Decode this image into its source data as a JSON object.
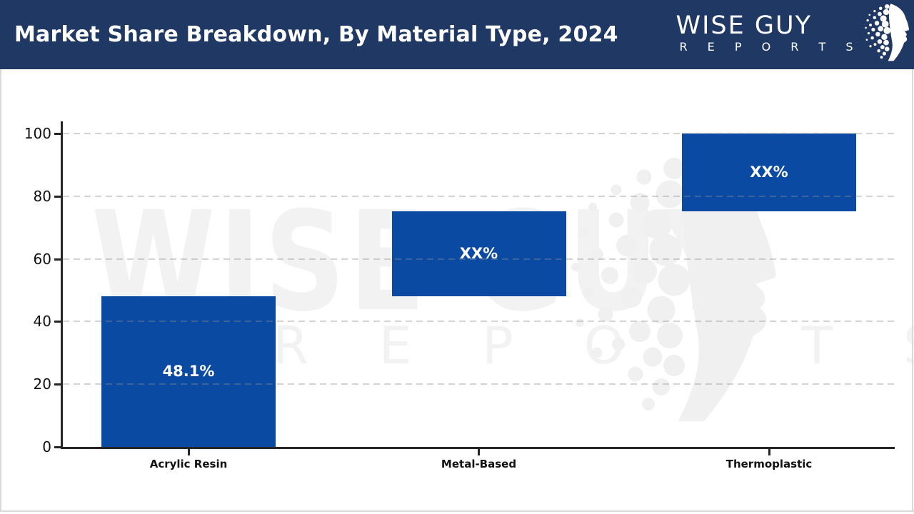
{
  "header": {
    "title": "Market Share Breakdown, By Material Type, 2024",
    "bg_color": "#1f3864",
    "logo": {
      "line1": "WISE GUY",
      "line2": "R E P O R T S"
    }
  },
  "watermark": {
    "line1": "WISE GUY",
    "line2": "R E P O R T S"
  },
  "chart_data": {
    "type": "bar",
    "subtype": "floating-waterfall",
    "title": "Market Share Breakdown, By Material Type, 2024",
    "categories": [
      "Acrylic Resin",
      "Metal-Based",
      "Thermoplastic"
    ],
    "segments": [
      {
        "category": "Acrylic Resin",
        "start": 0,
        "end": 48.1,
        "label": "48.1%"
      },
      {
        "category": "Metal-Based",
        "start": 48.1,
        "end": 75.2,
        "label": "XX%"
      },
      {
        "category": "Thermoplastic",
        "start": 75.2,
        "end": 100,
        "label": "XX%"
      }
    ],
    "yticks": [
      0,
      20,
      40,
      60,
      80,
      100
    ],
    "ylim": [
      0,
      104
    ],
    "xlabel": "",
    "ylabel": "",
    "grid": "dashed-horizontal-over-bars",
    "legend": "none",
    "bar_color": "#0b4aa2",
    "bar_label_color": "#ffffff"
  }
}
